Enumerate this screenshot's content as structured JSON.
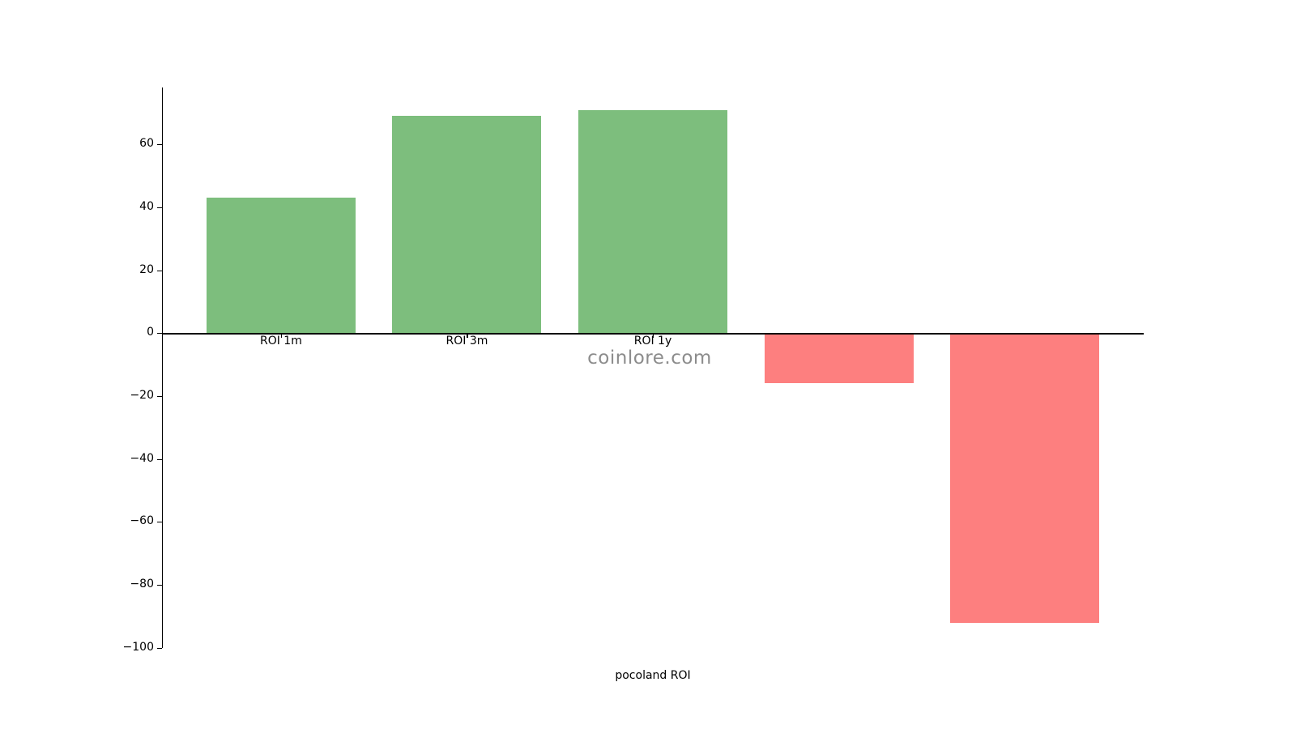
{
  "watermark": {
    "text": "coinlore.com",
    "color": "#8c8c8c"
  },
  "chart_data": {
    "type": "bar",
    "title": "",
    "xlabel": "pocoland ROI",
    "ylabel": "",
    "categories": [
      "ROI 1m",
      "ROI 3m",
      "ROI 1y",
      "",
      ""
    ],
    "values": [
      43,
      69,
      71,
      -16,
      -92
    ],
    "yticks": [
      60,
      40,
      20,
      0,
      -20,
      -40,
      -60,
      -80,
      -100
    ],
    "ylim": [
      -100.1,
      78.1
    ],
    "grid": false,
    "legend": "none",
    "colors": {
      "positive_bar": "#7dbe7d",
      "negative_bar": "#fd7f7f",
      "axis": "#000000",
      "tick_label": "#000000",
      "watermark": "#8c8c8c"
    }
  }
}
